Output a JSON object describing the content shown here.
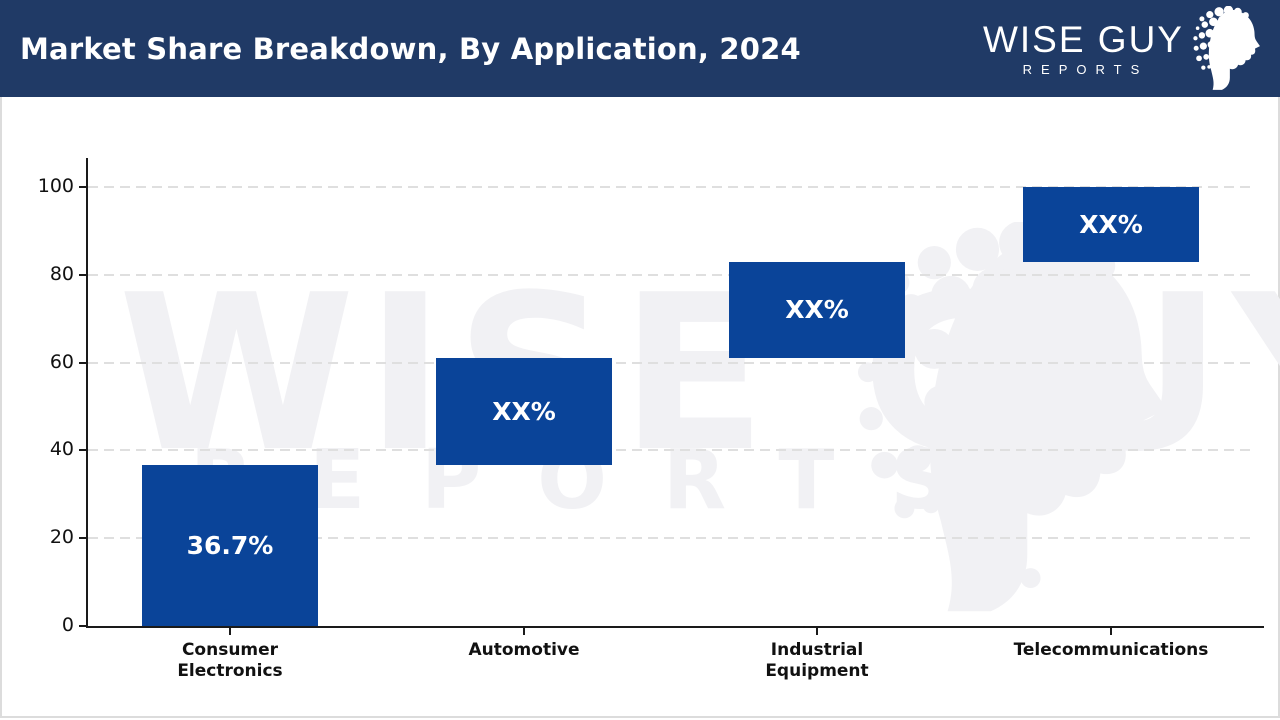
{
  "header": {
    "title": "Market Share Breakdown, By Application, 2024",
    "bg_color": "#203a66",
    "brand": {
      "wordmark": "WISE GUY",
      "tagline": "REPORTS"
    }
  },
  "watermark": {
    "wordmark": "WISE GUY",
    "tagline": "REPORTS"
  },
  "chart_data": {
    "type": "bar",
    "subtype": "waterfall-stacked-percentage",
    "title": "Market Share Breakdown, By Application, 2024",
    "categories": [
      "Consumer Electronics",
      "Automotive",
      "Industrial Equipment",
      "Telecommunications"
    ],
    "category_lines": [
      [
        "Consumer",
        "Electronics"
      ],
      [
        "Automotive"
      ],
      [
        "Industrial",
        "Equipment"
      ],
      [
        "Telecommunications"
      ]
    ],
    "series": [
      {
        "name": "Market share (%)",
        "segments": [
          {
            "category": "Consumer Electronics",
            "start": 0,
            "end": 36.7,
            "label": "36.7%"
          },
          {
            "category": "Automotive",
            "start": 36.7,
            "end": 61,
            "label": "XX%"
          },
          {
            "category": "Industrial Equipment",
            "start": 61,
            "end": 83,
            "label": "XX%"
          },
          {
            "category": "Telecommunications",
            "start": 83,
            "end": 100,
            "label": "XX%"
          }
        ]
      }
    ],
    "ylim": [
      0,
      106
    ],
    "yticks": [
      0,
      20,
      40,
      60,
      80,
      100
    ],
    "grid": "horizontal-dashed",
    "legend": null,
    "colors": {
      "bar": "#0a4499",
      "bar_label": "#ffffff",
      "axis": "#1a1a1a",
      "gridline": "#dfdfdf",
      "watermark": "#f1f1f4"
    }
  }
}
